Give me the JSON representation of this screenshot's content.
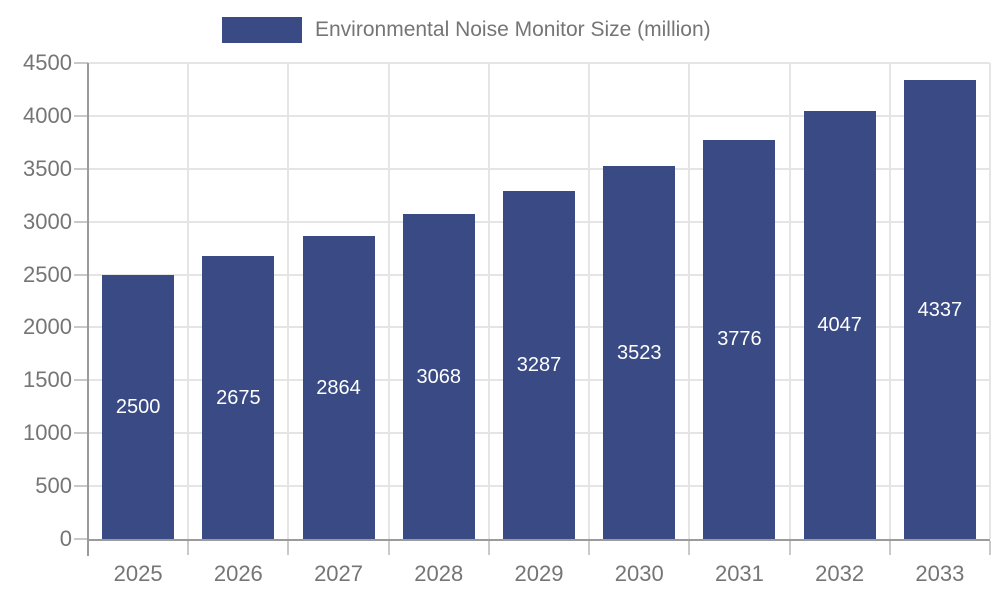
{
  "legend": {
    "label": "Environmental Noise Monitor Size (million)",
    "swatch_color": "#394a84"
  },
  "chart_data": {
    "type": "bar",
    "title": "Environmental Noise Monitor Size (million)",
    "categories": [
      "2025",
      "2026",
      "2027",
      "2028",
      "2029",
      "2030",
      "2031",
      "2032",
      "2033"
    ],
    "values": [
      2500,
      2675,
      2864,
      3068,
      3287,
      3523,
      3776,
      4047,
      4337
    ],
    "xlabel": "",
    "ylabel": "",
    "ylim": [
      0,
      4500
    ],
    "ytick_step": 500,
    "ytick_labels": [
      "0",
      "500",
      "1000",
      "1500",
      "2000",
      "2500",
      "3000",
      "3500",
      "4000",
      "4500"
    ],
    "grid": true,
    "legend_position": "top",
    "value_labels_inside_bars": true
  },
  "colors": {
    "bar": "#394a84",
    "axis_line": "#9b9b9b",
    "gridline": "#e5e5e5",
    "tick": "#c9c9c9",
    "axis_text": "#757575",
    "value_label_text": "#ffffff",
    "background": "#ffffff"
  }
}
